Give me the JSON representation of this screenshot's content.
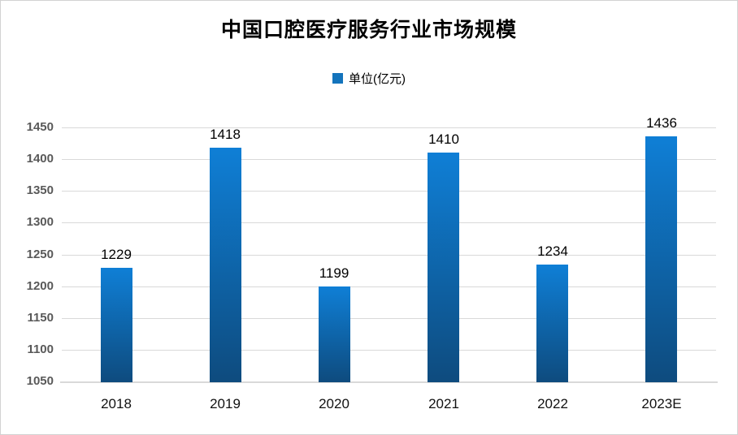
{
  "title": "中国口腔医疗服务行业市场规模",
  "legend": {
    "label": "单位(亿元)"
  },
  "colors": {
    "legend_marker": "#1474bc",
    "bar_gradient_top": "#0f7fd6",
    "bar_gradient_bottom": "#0e4b7e",
    "gridline": "#d9d9d9",
    "axis_label": "#595959",
    "text": "#000000",
    "frame_border": "#d2d2d2"
  },
  "chart_data": {
    "type": "bar",
    "title": "中国口腔医疗服务行业市场规模",
    "legend_entries": [
      "单位(亿元)"
    ],
    "legend_position": "top-center",
    "categories": [
      "2018",
      "2019",
      "2020",
      "2021",
      "2022",
      "2023E"
    ],
    "values": [
      1229,
      1418,
      1199,
      1410,
      1234,
      1436
    ],
    "xlabel": "",
    "ylabel": "",
    "ylim": [
      1050,
      1450
    ],
    "ytick_step": 50,
    "yticks": [
      1050,
      1100,
      1150,
      1200,
      1250,
      1300,
      1350,
      1400,
      1450
    ],
    "grid": true,
    "data_labels": true
  }
}
